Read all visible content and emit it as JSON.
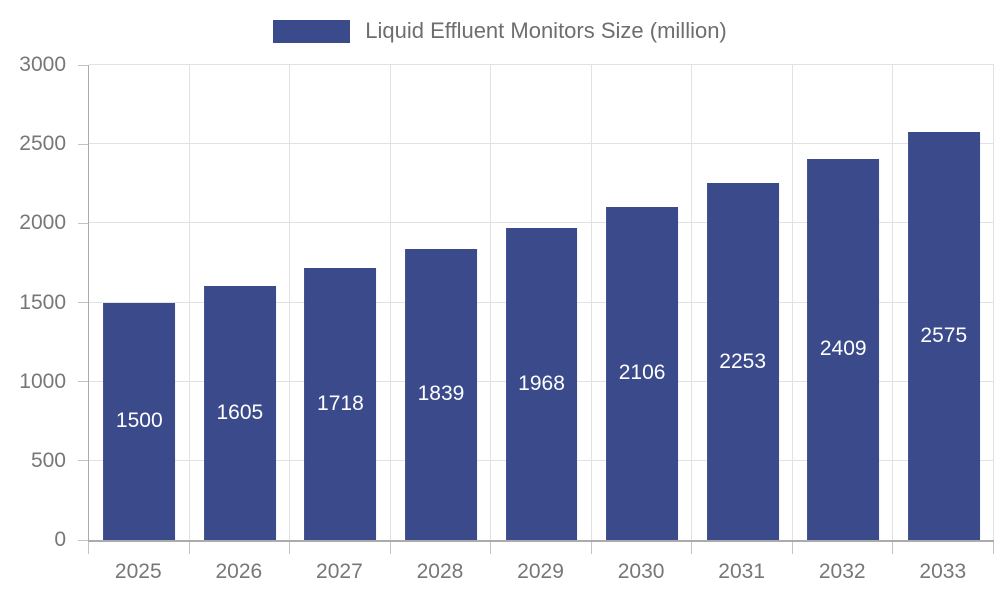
{
  "chart_data": {
    "type": "bar",
    "title": "Liquid Effluent Monitors Size (million)",
    "categories": [
      "2025",
      "2026",
      "2027",
      "2028",
      "2029",
      "2030",
      "2031",
      "2032",
      "2033"
    ],
    "values": [
      1500,
      1605,
      1718,
      1839,
      1968,
      2106,
      2253,
      2409,
      2575
    ],
    "xlabel": "",
    "ylabel": "",
    "ylim": [
      0,
      3000
    ],
    "yticks": [
      0,
      500,
      1000,
      1500,
      2000,
      2500,
      3000
    ],
    "grid": true,
    "legend_position": "top-center",
    "value_labels": "inside-center",
    "colors": {
      "bar": "#3A4A8B",
      "grid": "#E2E2E2",
      "axis_line": "#ABABAB",
      "tick": "#C2C2C8",
      "axis_text": "#777777",
      "legend_text": "#6E6E6E",
      "value_text": "#FFFFFF",
      "background": "#FFFFFF"
    }
  }
}
